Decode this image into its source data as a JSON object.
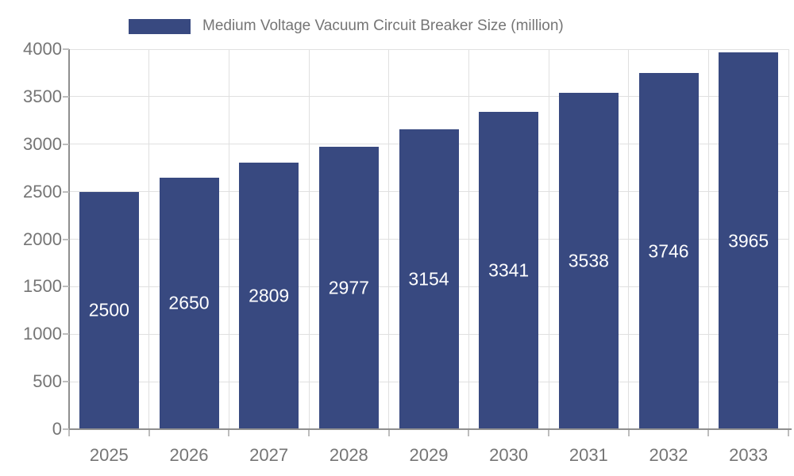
{
  "legend": {
    "label": "Medium Voltage Vacuum Circuit Breaker Size (million)"
  },
  "chart_data": {
    "type": "bar",
    "title": "Medium Voltage Vacuum Circuit Breaker Size (million)",
    "categories": [
      "2025",
      "2026",
      "2027",
      "2028",
      "2029",
      "2030",
      "2031",
      "2032",
      "2033"
    ],
    "values": [
      2500,
      2650,
      2809,
      2977,
      3154,
      3341,
      3538,
      3746,
      3965
    ],
    "series_name": "Medium Voltage Vacuum Circuit Breaker Size (million)",
    "xlabel": "",
    "ylabel": "",
    "ylim": [
      0,
      4000
    ],
    "ytick_interval": 500,
    "ytick_labels": [
      "0",
      "500",
      "1000",
      "1500",
      "2000",
      "2500",
      "3000",
      "3500",
      "4000"
    ],
    "grid": true,
    "legend_position": "top-left",
    "value_labels": "inside-middle",
    "colors": {
      "bar": "#384980",
      "value_label": "#ffffff",
      "axis_text": "#757575",
      "axis_line": "#8f8f8f",
      "tick": "#bdbdbd",
      "gridline": "#e0e0e0",
      "background": "#ffffff"
    }
  }
}
